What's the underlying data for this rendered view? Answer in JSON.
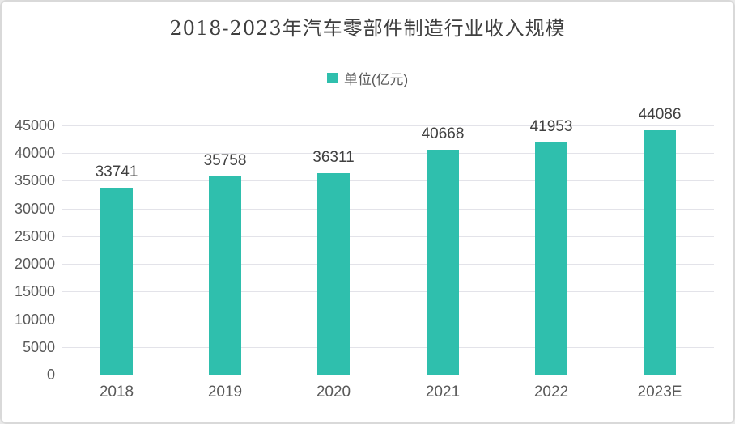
{
  "chart_data": {
    "type": "bar",
    "title": "2018-2023年汽车零部件制造行业收入规模",
    "legend": "单位(亿元)",
    "legend_position": "top",
    "categories": [
      "2018",
      "2019",
      "2020",
      "2021",
      "2022",
      "2023E"
    ],
    "values": [
      33741,
      35758,
      36311,
      40668,
      41953,
      44086
    ],
    "xlabel": "",
    "ylabel": "",
    "ylim": [
      0,
      45000
    ],
    "ytick_step": 5000,
    "yticks": [
      0,
      5000,
      10000,
      15000,
      20000,
      25000,
      30000,
      35000,
      40000,
      45000
    ],
    "grid": "horizontal",
    "colors": {
      "bar": "#2fbfad",
      "gridline": "#e3e3e9",
      "axis_line": "#cfcfd6",
      "tick_text": "#595959",
      "label_text": "#404040",
      "title_text": "#3f3f3f",
      "background": "#ffffff",
      "card_border": "#d9d9d9"
    }
  }
}
